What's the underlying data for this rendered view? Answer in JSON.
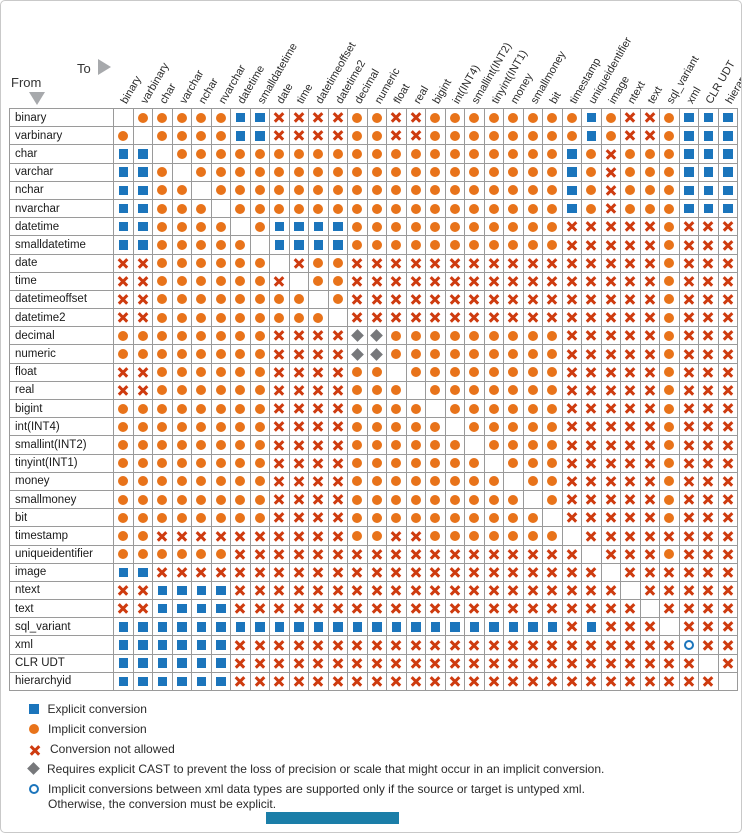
{
  "header": {
    "from_label": "From",
    "to_label": "To"
  },
  "colors": {
    "explicit": "#1b75bc",
    "implicit": "#e8731a",
    "not_allowed": "#ce3b0f",
    "cast_required": "#77787b",
    "xml_conditional": "#1b75bc",
    "grid_line": "#9a9a9a",
    "footer_bar": "#1b7ea8"
  },
  "legend": [
    {
      "code": "E",
      "label": "Explicit conversion"
    },
    {
      "code": "I",
      "label": "Implicit conversion"
    },
    {
      "code": "X",
      "label": "Conversion not allowed"
    },
    {
      "code": "D",
      "label": "Requires explicit CAST to prevent the loss of precision or scale that might occur in an implicit conversion."
    },
    {
      "code": "O",
      "label": "Implicit conversions between xml data types are supported only if the source or target is untyped xml.",
      "label2": "Otherwise, the conversion must be explicit."
    }
  ],
  "matrix": {
    "legend_codes": {
      "E": "explicit",
      "I": "implicit",
      "X": "not-allowed",
      "D": "cast-required",
      "O": "xml-conditional",
      ".": "blank"
    },
    "types": [
      "binary",
      "varbinary",
      "char",
      "varchar",
      "nchar",
      "nvarchar",
      "datetime",
      "smalldatetime",
      "date",
      "time",
      "datetimeoffset",
      "datetime2",
      "decimal",
      "numeric",
      "float",
      "real",
      "bigint",
      "int(INT4)",
      "smallint(INT2)",
      "tinyint(INT1)",
      "money",
      "smallmoney",
      "bit",
      "timestamp",
      "uniqueidentifier",
      "image",
      "ntext",
      "text",
      "sql_variant",
      "xml",
      "CLR UDT",
      "hierarchyid"
    ],
    "cells": [
      ".IIIIIEEXXXXIIXXIIIIIIIIEIXXIEEE",
      "I.IIIIEEXXXXIIXXIIIIIIIIEIXXIEEE",
      "EE.IIIIIIIIIIIIIIIIIIIIEIXIIIEEE",
      "EEI.IIIIIIIIIIIIIIIIIIIEIXIIIEEE",
      "EEII.IIIIIIIIIIIIIIIIIIEIXIIIEEE",
      "EEIII.IIIIIIIIIIIIIIIIIEIXIIIEEE",
      "EEIIII.IEEEEIIIIIIIIIIIXXXXXIXXX",
      "EEIIIII.EEEEIIIIIIIIIIIXXXXXIXXX",
      "XXIIIIII.XIIXXXXXXXXXXXXXXXXIXXX",
      "XXIIIIIIX.IIXXXXXXXXXXXXXXXXIXXX",
      "XXIIIIIIII.IXXXXXXXXXXXXXXXXIXXX",
      "XXIIIIIIIII.XXXXXXXXXXXXXXXXIXXX",
      "IIIIIIIIXXXXDDIIIIIIIIIXXXXXIXXX",
      "IIIIIIIIXXXXDDIIIIIIIIIXXXXXIXXX",
      "XXIIIIIIXXXXII.IIIIIIIIXXXXXIXXX",
      "XXIIIIIIXXXXIII.IIIIIIIXXXXXIXXX",
      "IIIIIIIIXXXXIIII.IIIIIIXXXXXIXXX",
      "IIIIIIIIXXXXIIIII.IIIIIXXXXXIXXX",
      "IIIIIIIIXXXXIIIIII.IIIIXXXXXIXXX",
      "IIIIIIIIXXXXIIIIIII.IIIXXXXXIXXX",
      "IIIIIIIIXXXXIIIIIIII.IIXXXXXIXXX",
      "IIIIIIIIXXXXIIIIIIIII.IXXXXXIXXX",
      "IIIIIIIIXXXXIIIIIIIIII.XXXXXIXXX",
      "IIXXXXXXXXXXIIXXIIIIIII.XXXXXXXX",
      "IIIIIIXXXXXXXXXXXXXXXXXX.XXXIXXX",
      "EEXXXXXXXXXXXXXXXXXXXXXXX.XXXXXX",
      "XXEEEEXXXXXXXXXXXXXXXXXXXX.XXXXX",
      "XXEEEEXXXXXXXXXXXXXXXXXXXXX.XXXX",
      "EEEEEEEEEEEEEEEEEEEEEEEXEXXX.XXX",
      "EEEEEEXXXXXXXXXXXXXXXXXXXXXXXOXX",
      "EEEEEEXXXXXXXXXXXXXXXXXXXXXXXX.X",
      "EEEEEEXXXXXXXXXXXXXXXXXXXXXXXXX."
    ]
  }
}
